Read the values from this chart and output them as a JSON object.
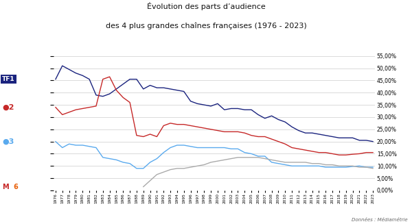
{
  "title_line1": "Évolution des parts d’audience",
  "title_line2": "des 4 plus grandes chaînes françaises (1976 - 2023)",
  "source": "Données : Médiamétrie",
  "years": [
    1976,
    1977,
    1978,
    1979,
    1980,
    1981,
    1982,
    1983,
    1984,
    1985,
    1986,
    1987,
    1988,
    1989,
    1990,
    1991,
    1992,
    1993,
    1994,
    1995,
    1996,
    1997,
    1998,
    1999,
    2000,
    2001,
    2002,
    2003,
    2004,
    2005,
    2006,
    2007,
    2008,
    2009,
    2010,
    2011,
    2012,
    2013,
    2014,
    2015,
    2016,
    2017,
    2018,
    2019,
    2020,
    2021,
    2022,
    2023
  ],
  "TF1": [
    0.455,
    0.51,
    0.495,
    0.48,
    0.47,
    0.455,
    0.39,
    0.385,
    0.395,
    0.415,
    0.435,
    0.455,
    0.455,
    0.415,
    0.43,
    0.42,
    0.42,
    0.415,
    0.41,
    0.405,
    0.365,
    0.355,
    0.35,
    0.345,
    0.355,
    0.33,
    0.335,
    0.335,
    0.33,
    0.33,
    0.31,
    0.295,
    0.305,
    0.29,
    0.28,
    0.26,
    0.245,
    0.235,
    0.235,
    0.23,
    0.225,
    0.22,
    0.215,
    0.215,
    0.215,
    0.205,
    0.205,
    0.2
  ],
  "F2": [
    0.34,
    0.31,
    0.32,
    0.33,
    0.335,
    0.34,
    0.345,
    0.455,
    0.465,
    0.41,
    0.38,
    0.36,
    0.225,
    0.22,
    0.23,
    0.22,
    0.265,
    0.275,
    0.27,
    0.27,
    0.265,
    0.26,
    0.255,
    0.25,
    0.245,
    0.24,
    0.24,
    0.24,
    0.235,
    0.225,
    0.22,
    0.22,
    0.21,
    0.2,
    0.19,
    0.175,
    0.17,
    0.165,
    0.16,
    0.155,
    0.155,
    0.15,
    0.145,
    0.145,
    0.148,
    0.15,
    0.155,
    0.155
  ],
  "F3": [
    0.2,
    0.175,
    0.19,
    0.185,
    0.185,
    0.18,
    0.175,
    0.135,
    0.13,
    0.125,
    0.115,
    0.11,
    0.09,
    0.09,
    0.115,
    0.13,
    0.155,
    0.175,
    0.185,
    0.185,
    0.18,
    0.175,
    0.175,
    0.175,
    0.175,
    0.175,
    0.17,
    0.17,
    0.155,
    0.15,
    0.14,
    0.14,
    0.115,
    0.11,
    0.105,
    0.1,
    0.1,
    0.1,
    0.1,
    0.1,
    0.095,
    0.095,
    0.095,
    0.095,
    0.098,
    0.1,
    0.095,
    0.095
  ],
  "M6": [
    null,
    null,
    null,
    null,
    null,
    null,
    null,
    null,
    null,
    null,
    null,
    null,
    null,
    0.015,
    0.04,
    0.065,
    0.075,
    0.085,
    0.09,
    0.09,
    0.095,
    0.1,
    0.105,
    0.115,
    0.12,
    0.125,
    0.13,
    0.135,
    0.135,
    0.135,
    0.135,
    0.13,
    0.125,
    0.12,
    0.115,
    0.115,
    0.115,
    0.115,
    0.11,
    0.11,
    0.105,
    0.105,
    0.1,
    0.1,
    0.1,
    0.095,
    0.095,
    0.09
  ],
  "TF1_color": "#1a237e",
  "F2_color": "#c62828",
  "F3_color": "#5aaaee",
  "M6_color": "#aaaaaa",
  "bg_color": "#ffffff",
  "ylim": [
    0.0,
    0.55
  ],
  "yticks": [
    0.0,
    0.05,
    0.1,
    0.15,
    0.2,
    0.25,
    0.3,
    0.35,
    0.4,
    0.45,
    0.5,
    0.55
  ]
}
